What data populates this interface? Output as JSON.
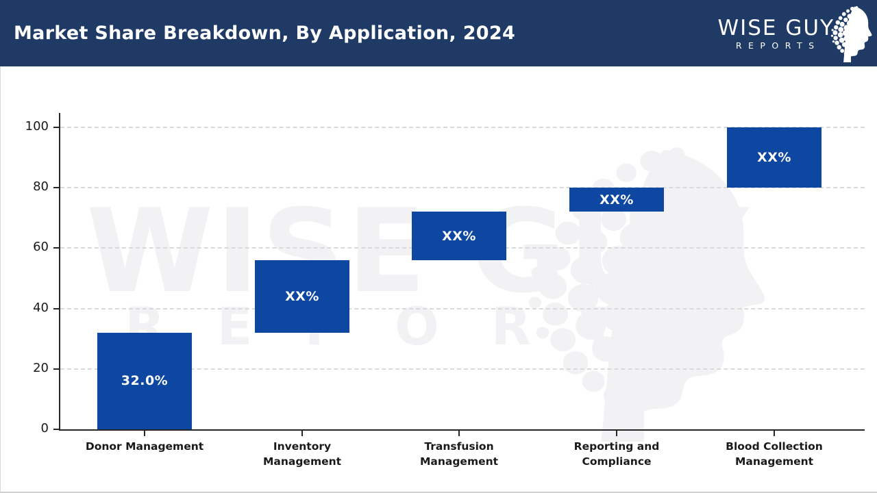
{
  "header": {
    "title": "Market Share Breakdown, By Application, 2024",
    "logo": {
      "line1": "WISE GUY",
      "line2": "REPORTS"
    }
  },
  "watermark": {
    "line1": "WISE GUY",
    "line2": "REPORTS"
  },
  "chart_data": {
    "type": "bar",
    "subtype": "floating-segment-waterfall",
    "title": "Market Share Breakdown, By Application, 2024",
    "categories": [
      "Donor Management",
      "Inventory Management",
      "Transfusion Management",
      "Reporting and Compliance",
      "Blood Collection Management"
    ],
    "category_label_lines": [
      [
        "Donor Management"
      ],
      [
        "Inventory",
        "Management"
      ],
      [
        "Transfusion",
        "Management"
      ],
      [
        "Reporting and",
        "Compliance"
      ],
      [
        "Blood Collection",
        "Management"
      ]
    ],
    "segments": [
      {
        "category": "Donor Management",
        "start": 0,
        "end": 32,
        "value": 32,
        "label": "32.0%"
      },
      {
        "category": "Inventory Management",
        "start": 32,
        "end": 56,
        "value": 24,
        "label": "XX%"
      },
      {
        "category": "Transfusion Management",
        "start": 56,
        "end": 72,
        "value": 16,
        "label": "XX%"
      },
      {
        "category": "Reporting and Compliance",
        "start": 72,
        "end": 80,
        "value": 8,
        "label": "XX%"
      },
      {
        "category": "Blood Collection Management",
        "start": 80,
        "end": 100,
        "value": 20,
        "label": "XX%"
      }
    ],
    "yticks": [
      0,
      20,
      40,
      60,
      80,
      100
    ],
    "ylim": [
      0,
      100
    ],
    "xlabel": "",
    "ylabel": "",
    "grid": "horizontal-dashed",
    "legend": "none",
    "colors": {
      "bar": "#0d47a1",
      "bar_label": "#ffffff",
      "axis": "#262626",
      "gridline": "#d9d9d9",
      "tick_label": "#1a1a1a",
      "header_bg": "#203a66",
      "header_text": "#ffffff",
      "watermark": "#f2f2f4"
    }
  }
}
